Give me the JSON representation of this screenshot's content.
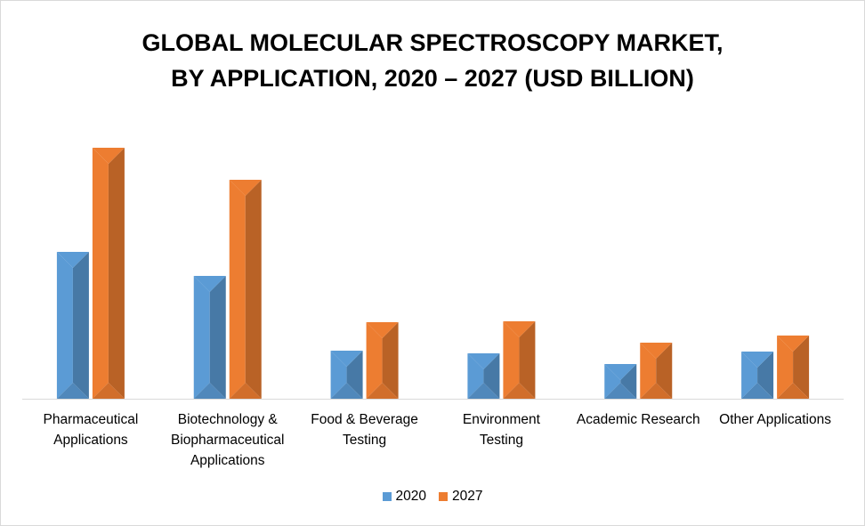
{
  "title_lines": [
    "GLOBAL MOLECULAR SPECTROSCOPY MARKET,",
    "BY APPLICATION, 2020 – 2027 (USD BILLION)"
  ],
  "colors": {
    "2020": "#5b9bd5",
    "2027": "#ed7d31",
    "axis": "#d9d9d9"
  },
  "chart_data": {
    "type": "bar",
    "title": "GLOBAL MOLECULAR SPECTROSCOPY MARKET, BY APPLICATION, 2020 – 2027 (USD BILLION)",
    "categories": [
      [
        "Pharmaceutical",
        "Applications"
      ],
      [
        "Biotechnology &",
        "Biopharmaceutical",
        "Applications"
      ],
      [
        "Food & Beverage",
        "Testing"
      ],
      [
        "Environment",
        "Testing"
      ],
      [
        "Academic Research"
      ],
      [
        "Other Applications"
      ]
    ],
    "series": [
      {
        "name": "2020",
        "values": [
          1.65,
          1.38,
          0.54,
          0.51,
          0.39,
          0.53
        ]
      },
      {
        "name": "2027",
        "values": [
          2.82,
          2.46,
          0.86,
          0.87,
          0.63,
          0.71
        ]
      }
    ],
    "ylim": [
      0,
      3.0
    ],
    "grid": false,
    "legend": "bottom"
  }
}
